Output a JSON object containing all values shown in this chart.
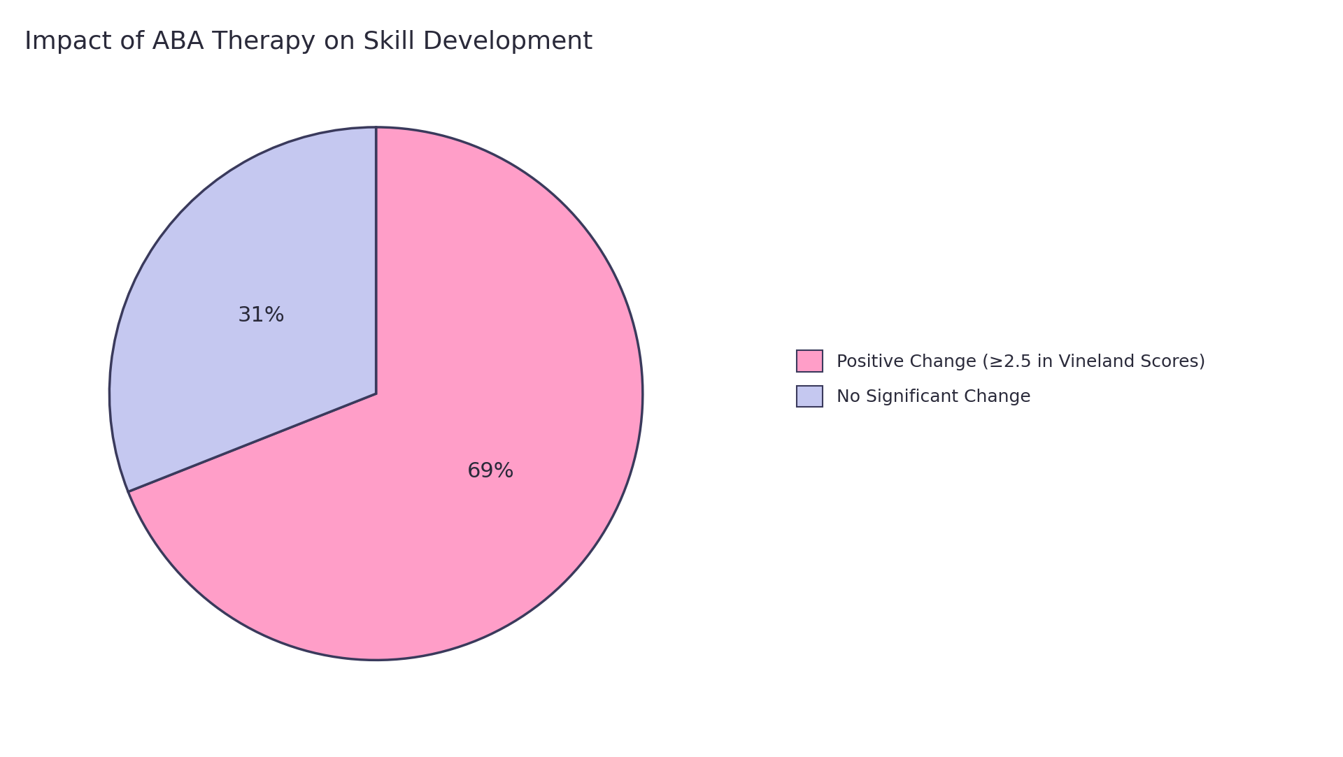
{
  "title": "Impact of ABA Therapy on Skill Development",
  "slices": [
    69,
    31
  ],
  "labels": [
    "Positive Change (≥2.5 in Vineland Scores)",
    "No Significant Change"
  ],
  "colors": [
    "#FF9EC8",
    "#C5C8F0"
  ],
  "edge_color": "#3a3a5c",
  "edge_width": 2.5,
  "pct_labels": [
    "69%",
    "31%"
  ],
  "pct_fontsize": 22,
  "title_fontsize": 26,
  "legend_fontsize": 18,
  "startangle": 90,
  "background_color": "#ffffff",
  "text_color": "#2a2a3a"
}
